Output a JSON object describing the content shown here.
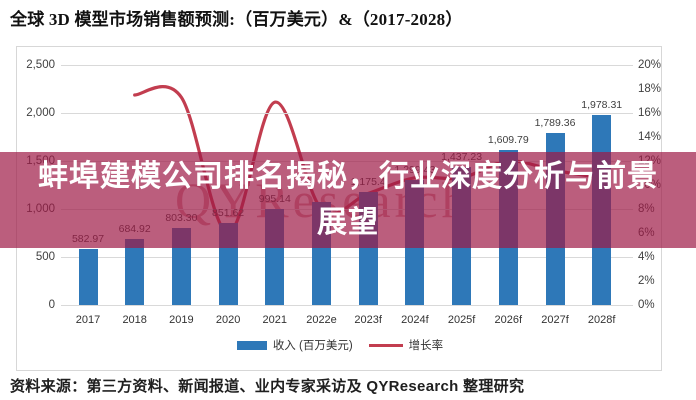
{
  "page": {
    "title": "全球 3D 模型市场销售额预测:（百万美元）&（2017-2028）",
    "source": "资料来源：第三方资料、新闻报道、业内专家采访及 QYResearch 整理研究",
    "watermark": "QYResearch"
  },
  "overlay_banner": {
    "line1": "蚌埠建模公司排名揭秘，行业深度分析与前景",
    "line2": "展望"
  },
  "legend": {
    "revenue_label": "收入 (百万美元)",
    "growth_label": "增长率"
  },
  "colors": {
    "bar": "#2E78B8",
    "line": "#C23D4F",
    "banner": "rgba(158,26,70,0.70)",
    "watermark": "rgba(175,55,70,0.50)",
    "gridline": "#D9D9D9"
  },
  "chart_data": {
    "type": "bar",
    "subtype": "combo-bar-line",
    "title": "全球 3D 模型市场销售额预测:（百万美元）&（2017-2028）",
    "categories": [
      "2017",
      "2018",
      "2019",
      "2020",
      "2021",
      "2022e",
      "2023f",
      "2024f",
      "2025f",
      "2026f",
      "2027f",
      "2028f"
    ],
    "series": [
      {
        "name": "收入 (百万美元)",
        "type": "bar",
        "axis": "left",
        "values": [
          582.97,
          684.92,
          803.3,
          851.62,
          995.14,
          1075,
          1175.4,
          1299.43,
          1437.23,
          1609.79,
          1789.36,
          1978.31
        ],
        "labels": [
          "582.97",
          "684.92",
          "803.30",
          "851.62",
          "995.14",
          "",
          "1,175.4",
          "1,299.43",
          "1,437.23",
          "1,609.79",
          "1,789.36",
          "1,978.31"
        ]
      },
      {
        "name": "增长率",
        "type": "line",
        "axis": "right",
        "values_pct": [
          null,
          17.5,
          17.3,
          6.0,
          16.9,
          8.0,
          9.3,
          10.6,
          10.6,
          12.0,
          11.2,
          10.6
        ]
      }
    ],
    "left_axis": {
      "min": 0,
      "max": 2500,
      "ticks": [
        "2,500",
        "2,000",
        "1,500",
        "1,000",
        "500",
        "0"
      ]
    },
    "right_axis": {
      "min": "0%",
      "max": "20%",
      "ticks": [
        "20%",
        "18%",
        "16%",
        "14%",
        "12%",
        "10%",
        "8%",
        "6%",
        "4%",
        "2%",
        "0%"
      ]
    },
    "grid": true,
    "legend_position": "bottom"
  }
}
